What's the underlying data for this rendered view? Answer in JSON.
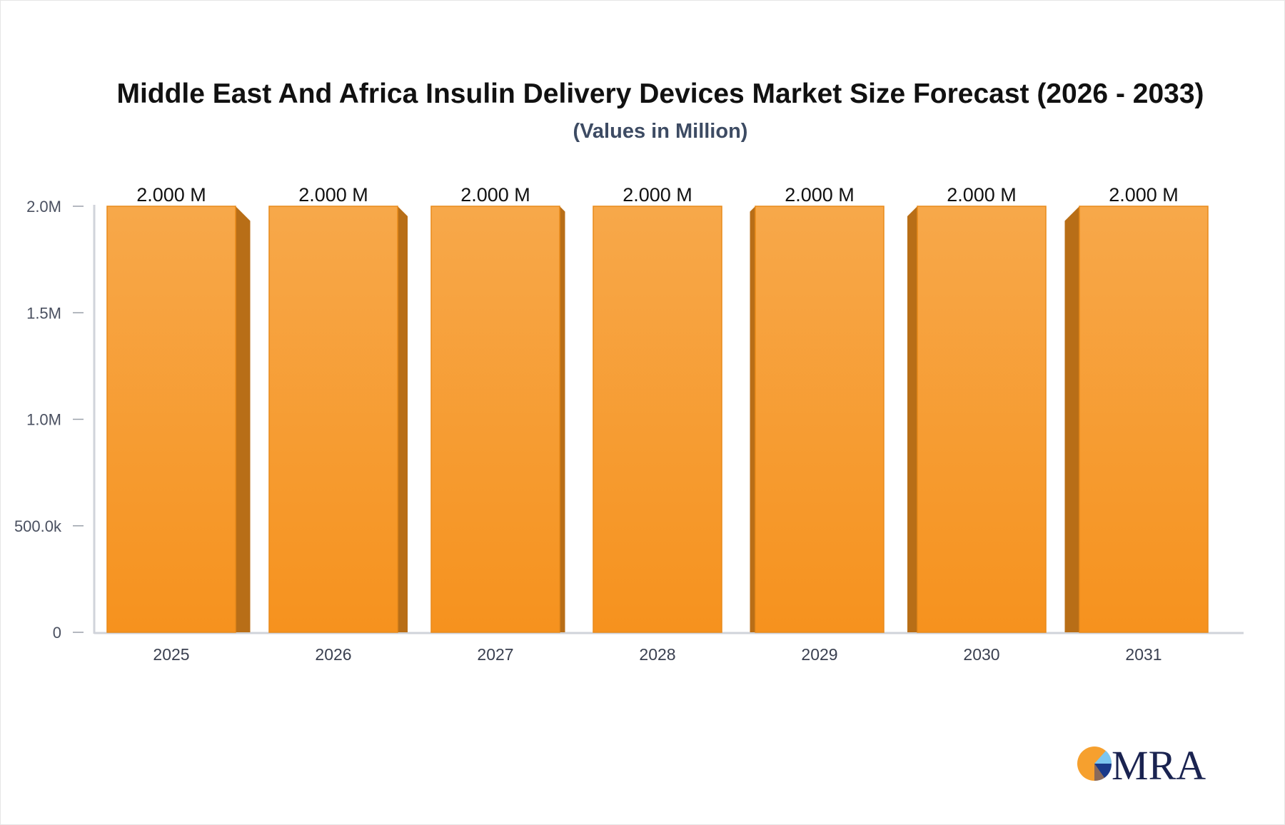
{
  "chart_data": {
    "type": "bar",
    "title": "Middle East And Africa Insulin Delivery Devices Market Size Forecast (2026 - 2033)",
    "subtitle": "(Values in Million)",
    "xlabel": "",
    "ylabel": "",
    "categories": [
      "2025",
      "2026",
      "2027",
      "2028",
      "2029",
      "2030",
      "2031"
    ],
    "values": [
      2000000,
      2000000,
      2000000,
      2000000,
      2000000,
      2000000,
      2000000
    ],
    "data_labels": [
      "2.000 M",
      "2.000 M",
      "2.000 M",
      "2.000 M",
      "2.000 M",
      "2.000 M",
      "2.000 M"
    ],
    "ylim": [
      0,
      2000000
    ],
    "yticks": [
      0,
      500000,
      1000000,
      1500000,
      2000000
    ],
    "ytick_labels": [
      "0",
      "500.0k",
      "1.0M",
      "1.5M",
      "2.0M"
    ],
    "grid": false,
    "legend": "none",
    "colors": {
      "bar_top": "#f7a84a",
      "bar_bottom": "#f6921e",
      "bar_side": "#b86e17",
      "axis": "#d0d3da"
    }
  },
  "logo": {
    "text": "MRA",
    "colors": [
      "#f6a02e",
      "#7cc6f0",
      "#1a3a8a",
      "#8a6a5a",
      "#1a2350"
    ]
  }
}
